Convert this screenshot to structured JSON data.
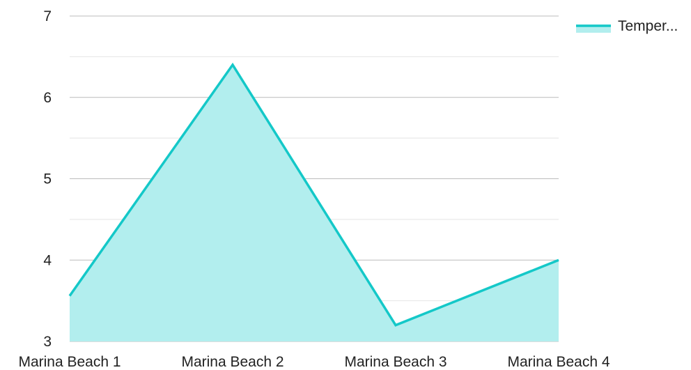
{
  "chart_data": {
    "type": "area",
    "categories": [
      "Marina Beach 1",
      "Marina Beach 2",
      "Marina Beach 3",
      "Marina Beach 4"
    ],
    "series": [
      {
        "name": "Temper...",
        "values": [
          3.56,
          6.4,
          3.2,
          4.0
        ]
      }
    ],
    "ylim": [
      3,
      7
    ],
    "yticks": [
      "3",
      "4",
      "5",
      "6",
      "7"
    ],
    "minor_gridlines": true,
    "grid": true,
    "legend_position": "top-right",
    "colors": {
      "line": "#14c8c8",
      "fill": "#b2eeee",
      "major_grid": "#bbbbbb",
      "minor_grid": "#e4e4e4",
      "text": "#222222"
    }
  }
}
